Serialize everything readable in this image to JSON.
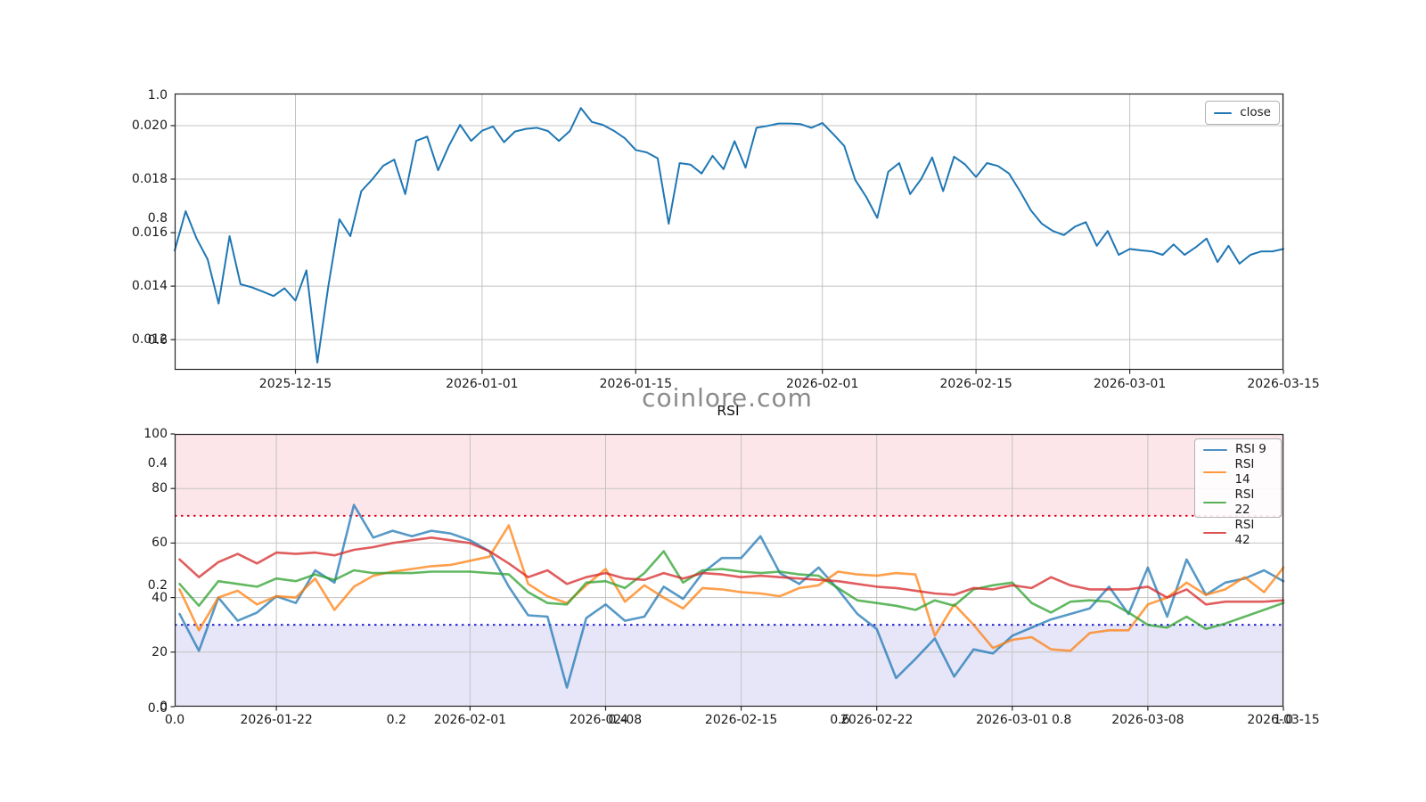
{
  "watermark": "coinlore.com",
  "price_chart": {
    "y_tick_labels": [
      "0.020",
      "0.018",
      "0.016",
      "0.014",
      "0.012"
    ],
    "y_tick_values": [
      0.02,
      0.018,
      0.016,
      0.014,
      0.012
    ],
    "x_tick_labels": [
      "2025-12-15",
      "2026-01-01",
      "2026-01-15",
      "2026-02-01",
      "2026-02-15",
      "2026-03-01",
      "2026-03-15"
    ],
    "x_tick_days": [
      11,
      28,
      42,
      59,
      73,
      87,
      101
    ],
    "legend": [
      {
        "label": "close",
        "color": "#1f77b4"
      }
    ]
  },
  "rsi_chart": {
    "title": "RSI",
    "y_tick_labels": [
      "100",
      "80",
      "60",
      "40",
      "20",
      "0"
    ],
    "y_tick_values": [
      100,
      80,
      60,
      40,
      20,
      0
    ],
    "x_tick_labels": [
      "2026-01-22",
      "2026-02-01",
      "2026-02-08",
      "2026-02-15",
      "2026-02-22",
      "2026-03-01",
      "2026-03-08",
      "2026-03-15"
    ],
    "x_tick_days": [
      5,
      15,
      22,
      29,
      36,
      43,
      50,
      57
    ],
    "legend": [
      {
        "label": "RSI 9",
        "color": "#1f77b4"
      },
      {
        "label": "RSI 14",
        "color": "#ff7f0e"
      },
      {
        "label": "RSI 22",
        "color": "#2ca02c"
      },
      {
        "label": "RSI 42",
        "color": "#d62728"
      }
    ],
    "overbought_level": 70,
    "oversold_level": 30
  },
  "ghost_axis": {
    "y_tick_labels": [
      "1.0",
      "0.8",
      "0.6",
      "0.4",
      "0.2",
      "0.0"
    ],
    "x_tick_labels": [
      "0.0",
      "0.2",
      "0.4",
      "0.6",
      "0.8",
      "1.0"
    ]
  },
  "chart_data": [
    {
      "type": "line",
      "title": "",
      "xlabel": "",
      "ylabel": "",
      "x_start": "2025-12-04",
      "x_end": "2026-03-15",
      "x_unit": "day",
      "ylim": [
        0.01087,
        0.0212
      ],
      "grid": true,
      "legend_position": "upper right",
      "series": [
        {
          "name": "close",
          "color": "#1f77b4",
          "values": [
            0.01533,
            0.0168,
            0.01578,
            0.015,
            0.01335,
            0.01587,
            0.01407,
            0.01396,
            0.0138,
            0.01363,
            0.01392,
            0.01346,
            0.01459,
            0.01114,
            0.014,
            0.0165,
            0.01587,
            0.01755,
            0.01799,
            0.0185,
            0.01873,
            0.01744,
            0.01943,
            0.01959,
            0.01833,
            0.01926,
            0.02003,
            0.01943,
            0.01981,
            0.01997,
            0.01938,
            0.01978,
            0.01988,
            0.01992,
            0.0198,
            0.01943,
            0.0198,
            0.02066,
            0.02014,
            0.02003,
            0.01981,
            0.01953,
            0.01909,
            0.019,
            0.01878,
            0.01633,
            0.0186,
            0.01854,
            0.01821,
            0.01887,
            0.01837,
            0.01942,
            0.01843,
            0.01992,
            0.01999,
            0.02008,
            0.02008,
            0.02006,
            0.01992,
            0.0201,
            0.01968,
            0.01924,
            0.01797,
            0.01733,
            0.01655,
            0.01827,
            0.0186,
            0.01744,
            0.018,
            0.01881,
            0.01755,
            0.01884,
            0.01855,
            0.01808,
            0.0186,
            0.01849,
            0.01821,
            0.01755,
            0.01683,
            0.01633,
            0.01606,
            0.01591,
            0.01622,
            0.01639,
            0.01551,
            0.01606,
            0.01517,
            0.01539,
            0.01534,
            0.0153,
            0.01517,
            0.01556,
            0.01517,
            0.01545,
            0.01578,
            0.0149,
            0.01551,
            0.01484,
            0.01517,
            0.0153,
            0.0153,
            0.01539
          ]
        }
      ]
    },
    {
      "type": "line",
      "title": "RSI",
      "xlabel": "",
      "ylabel": "",
      "x_start": "2026-01-17",
      "x_end": "2026-03-15",
      "x_unit": "day",
      "ylim": [
        0,
        100
      ],
      "grid": true,
      "legend_position": "upper right",
      "bands": [
        {
          "name": "overbought-band",
          "from": 70,
          "to": 100,
          "color": "rgba(228,26,60,0.11)"
        },
        {
          "name": "oversold-band",
          "from": 0,
          "to": 30,
          "color": "rgba(60,60,200,0.13)"
        }
      ],
      "hlines": [
        {
          "name": "overbought-line",
          "value": 70,
          "color": "#e3001b",
          "style": "dotted"
        },
        {
          "name": "oversold-line",
          "value": 30,
          "color": "#1212cc",
          "style": "dotted"
        }
      ],
      "series": [
        {
          "name": "RSI 9",
          "color": "#1f77b4",
          "values": [
            34,
            20.5,
            40,
            31.5,
            34.5,
            40.5,
            38,
            50,
            45.5,
            74,
            62,
            64.5,
            62.5,
            64.5,
            63.5,
            61,
            57,
            44,
            33.5,
            33,
            7,
            32.5,
            37.5,
            31.5,
            33,
            44,
            39.5,
            49,
            54.5,
            54.5,
            62.5,
            49,
            45,
            51,
            43,
            34,
            28.5,
            10.5,
            17.5,
            25,
            11,
            21,
            19.5,
            26,
            29,
            32,
            34,
            36,
            44,
            34,
            51,
            33,
            54,
            41,
            45.5,
            47,
            50,
            46
          ]
        },
        {
          "name": "RSI 14",
          "color": "#ff7f0e",
          "values": [
            43,
            28,
            40,
            42.5,
            37.5,
            40.5,
            40,
            47,
            35.5,
            44,
            48,
            49.5,
            50.5,
            51.5,
            52,
            53.5,
            55,
            66.5,
            45,
            40.5,
            38,
            44.5,
            50.5,
            38.5,
            44.5,
            40,
            36,
            43.5,
            43,
            42,
            41.5,
            40.5,
            43.5,
            44.5,
            49.5,
            48.5,
            48,
            49,
            48.5,
            26,
            37.5,
            30,
            21.5,
            24.5,
            25.5,
            21,
            20.5,
            27,
            28,
            28,
            37.5,
            40,
            45.5,
            41,
            43,
            47.5,
            42,
            51
          ]
        },
        {
          "name": "RSI 22",
          "color": "#2ca02c",
          "values": [
            45,
            37,
            46,
            45,
            44,
            47,
            46,
            48.5,
            46.5,
            50,
            49,
            49,
            49,
            49.5,
            49.5,
            49.5,
            49,
            48.5,
            42,
            38,
            37.5,
            45.5,
            46,
            43.5,
            49,
            57,
            45.5,
            50,
            50.5,
            49.5,
            49,
            49.5,
            48.5,
            48,
            43.5,
            39,
            38,
            37,
            35.5,
            39,
            37,
            43,
            44.5,
            45.5,
            38,
            34.5,
            38.5,
            39,
            38.5,
            34.5,
            30,
            29,
            33,
            28.5,
            30.5,
            33,
            35.5,
            38
          ]
        },
        {
          "name": "RSI 42",
          "color": "#d62728",
          "values": [
            54,
            47.5,
            53,
            56,
            52.5,
            56.5,
            56,
            56.5,
            55.5,
            57.5,
            58.5,
            60,
            61,
            62,
            61,
            60,
            57,
            52.5,
            47.5,
            50,
            45,
            47.5,
            49,
            47,
            46.5,
            49,
            47,
            49,
            48.5,
            47.5,
            48,
            47.5,
            47,
            46.5,
            46,
            45,
            44,
            43.5,
            42.5,
            41.5,
            41,
            43.5,
            43,
            44.5,
            43.5,
            47.5,
            44.5,
            43,
            43,
            43,
            44,
            40,
            43,
            37.5,
            38.5,
            38.5,
            38.5,
            39
          ]
        }
      ]
    }
  ]
}
